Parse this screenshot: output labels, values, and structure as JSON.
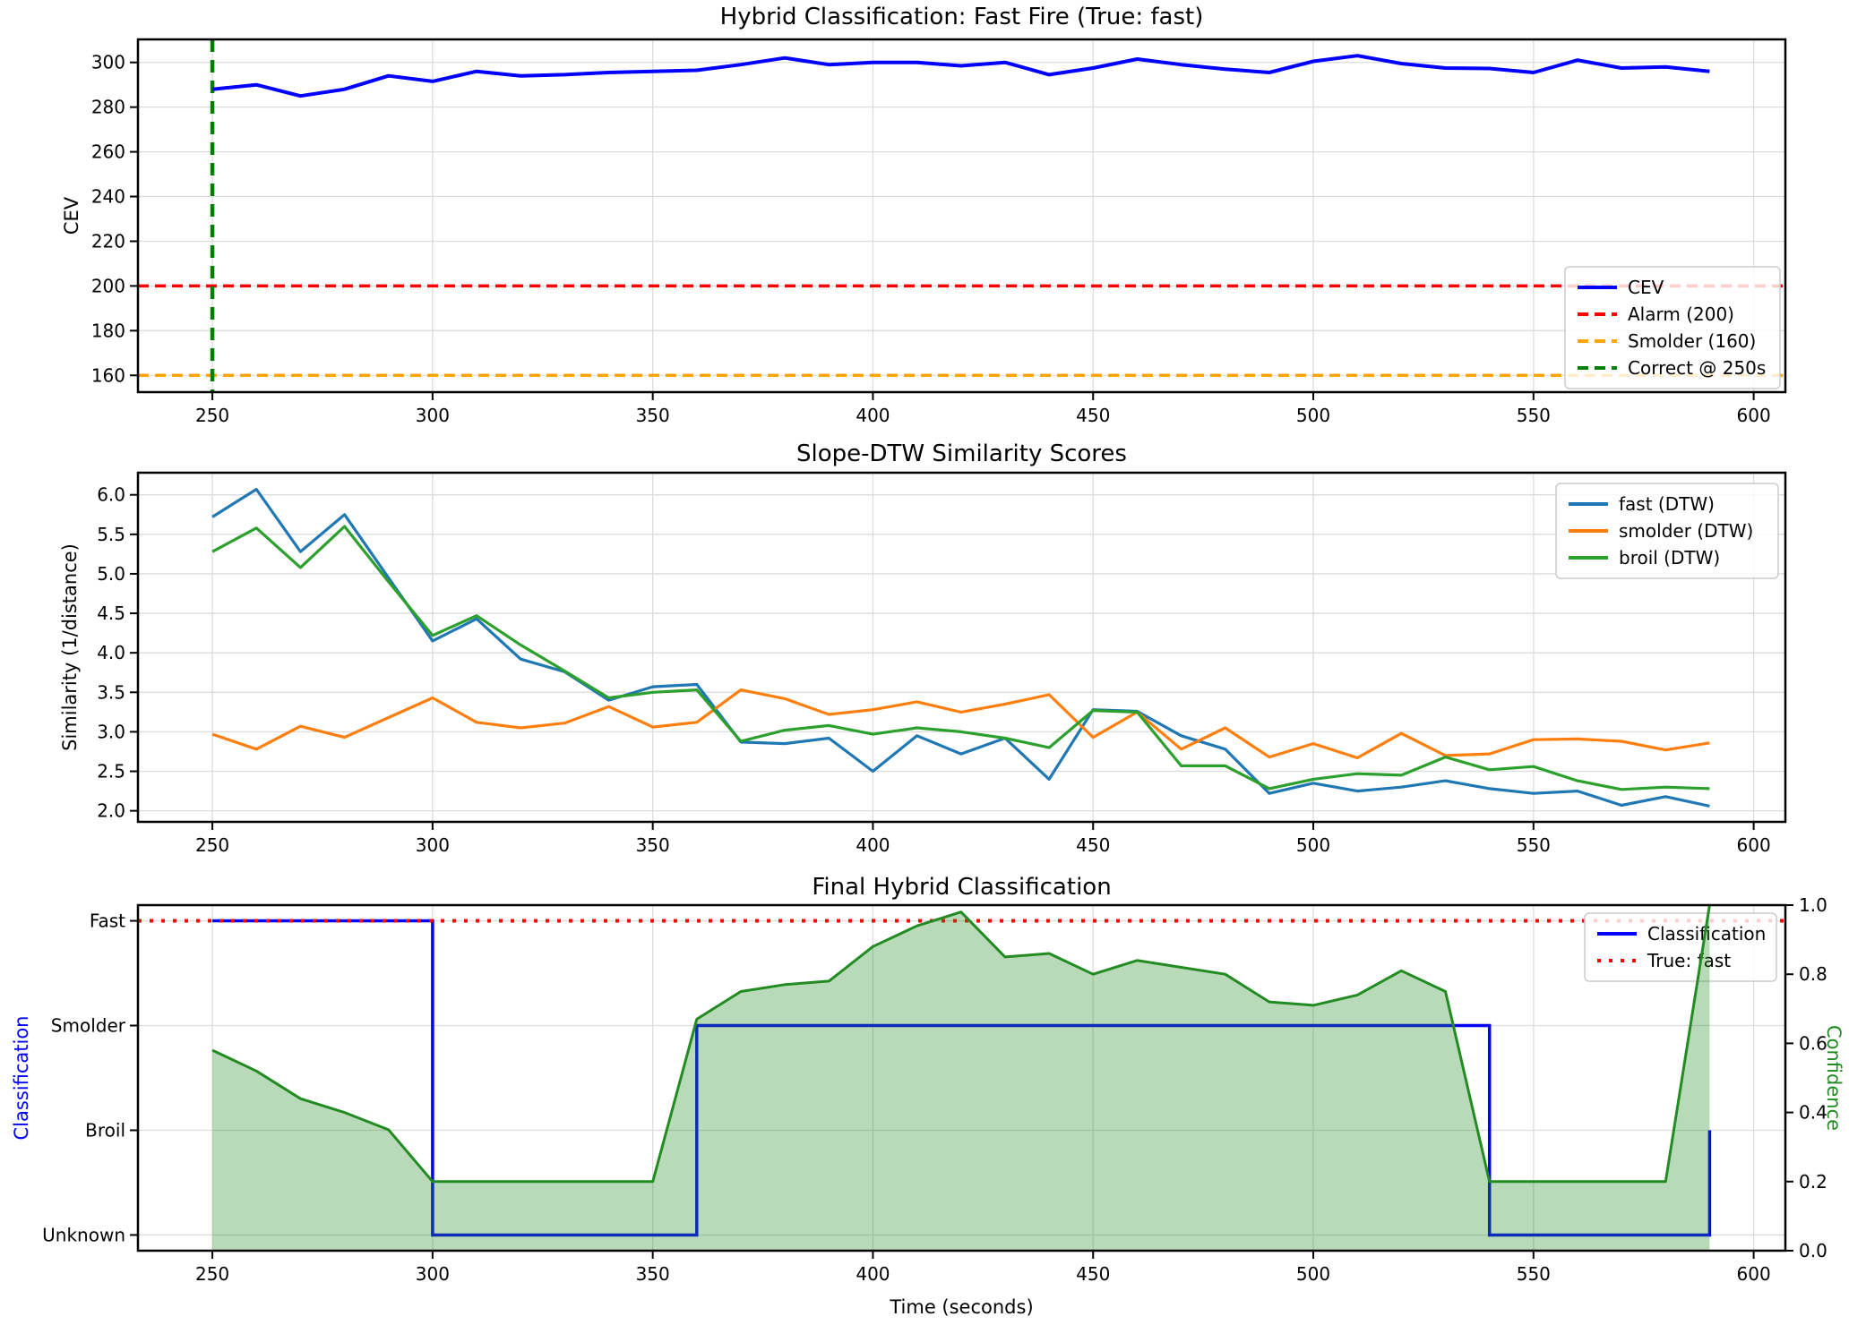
{
  "x_axis": {
    "label": "Time (seconds)",
    "ticks": [
      "250",
      "300",
      "350",
      "400",
      "450",
      "500",
      "550",
      "600"
    ],
    "tick_values": [
      250,
      300,
      350,
      400,
      450,
      500,
      550,
      600
    ],
    "xlim": [
      233.1,
      607.2
    ]
  },
  "chart_data": [
    {
      "type": "line",
      "title": "Hybrid Classification: Fast Fire (True: fast)",
      "ylabel": "CEV",
      "ylim": [
        152.5,
        310.3
      ],
      "yticks": [
        "160",
        "180",
        "200",
        "220",
        "240",
        "260",
        "280",
        "300"
      ],
      "ytick_values": [
        160,
        180,
        200,
        220,
        240,
        260,
        280,
        300
      ],
      "x": [
        250,
        260,
        270,
        280,
        290,
        300,
        310,
        320,
        330,
        340,
        350,
        360,
        370,
        380,
        390,
        400,
        410,
        420,
        430,
        440,
        450,
        460,
        470,
        480,
        490,
        500,
        510,
        520,
        530,
        540,
        550,
        560,
        570,
        580,
        590
      ],
      "series": [
        {
          "name": "CEV",
          "color": "#0000ff",
          "style": "solid",
          "values": [
            288,
            290,
            285,
            288,
            294,
            291.5,
            296,
            294,
            294.5,
            295.5,
            296,
            296.5,
            299,
            302,
            299,
            300,
            300,
            298.5,
            300,
            294.5,
            297.5,
            301.5,
            299,
            297,
            295.5,
            300.5,
            303,
            299.5,
            297.5,
            297.3,
            295.5,
            301,
            297.5,
            298,
            296
          ]
        }
      ],
      "hlines": [
        {
          "label": "Alarm (200)",
          "y": 200,
          "color": "#ff0000",
          "style": "dashed"
        },
        {
          "label": "Smolder (160)",
          "y": 160,
          "color": "#ffa500",
          "style": "dashed"
        }
      ],
      "vlines": [
        {
          "label": "Correct @ 250s",
          "x": 250,
          "color": "#008000",
          "style": "dashed"
        }
      ],
      "legend": {
        "location": "lower right",
        "items": [
          {
            "label": "CEV",
            "color": "#0000ff",
            "style": "solid"
          },
          {
            "label": "Alarm (200)",
            "color": "#ff0000",
            "style": "dashed"
          },
          {
            "label": "Smolder (160)",
            "color": "#ffa500",
            "style": "dashed"
          },
          {
            "label": "Correct @ 250s",
            "color": "#008000",
            "style": "dashed"
          }
        ]
      }
    },
    {
      "type": "line",
      "title": "Slope-DTW Similarity Scores",
      "ylabel": "Similarity (1/distance)",
      "ylim": [
        1.86,
        6.28
      ],
      "yticks": [
        "2.0",
        "2.5",
        "3.0",
        "3.5",
        "4.0",
        "4.5",
        "5.0",
        "5.5",
        "6.0"
      ],
      "ytick_values": [
        2.0,
        2.5,
        3.0,
        3.5,
        4.0,
        4.5,
        5.0,
        5.5,
        6.0
      ],
      "x": [
        250,
        260,
        270,
        280,
        290,
        300,
        310,
        320,
        330,
        340,
        350,
        360,
        370,
        380,
        390,
        400,
        410,
        420,
        430,
        440,
        450,
        460,
        470,
        480,
        490,
        500,
        510,
        520,
        530,
        540,
        550,
        560,
        570,
        580,
        590
      ],
      "series": [
        {
          "name": "fast (DTW)",
          "color": "#1f77b4",
          "style": "solid",
          "values": [
            5.72,
            6.07,
            5.28,
            5.75,
            4.95,
            4.15,
            4.43,
            3.92,
            3.76,
            3.4,
            3.57,
            3.6,
            2.87,
            2.85,
            2.92,
            2.5,
            2.95,
            2.72,
            2.92,
            2.4,
            3.28,
            3.26,
            2.95,
            2.78,
            2.22,
            2.35,
            2.25,
            2.3,
            2.38,
            2.28,
            2.22,
            2.25,
            2.07,
            2.18,
            2.06
          ]
        },
        {
          "name": "smolder (DTW)",
          "color": "#ff7f0e",
          "style": "solid",
          "values": [
            2.97,
            2.78,
            3.07,
            2.93,
            3.18,
            3.43,
            3.12,
            3.05,
            3.11,
            3.32,
            3.06,
            3.12,
            3.53,
            3.42,
            3.22,
            3.28,
            3.38,
            3.25,
            3.35,
            3.47,
            2.93,
            3.25,
            2.78,
            3.05,
            2.68,
            2.85,
            2.67,
            2.98,
            2.7,
            2.72,
            2.9,
            2.91,
            2.88,
            2.77,
            2.86
          ]
        },
        {
          "name": "broil (DTW)",
          "color": "#2ca02c",
          "style": "solid",
          "values": [
            5.28,
            5.58,
            5.08,
            5.6,
            4.9,
            4.22,
            4.47,
            4.1,
            3.77,
            3.43,
            3.5,
            3.53,
            2.88,
            3.02,
            3.08,
            2.97,
            3.05,
            3.0,
            2.92,
            2.8,
            3.27,
            3.25,
            2.57,
            2.57,
            2.28,
            2.4,
            2.47,
            2.45,
            2.68,
            2.52,
            2.56,
            2.38,
            2.27,
            2.3,
            2.28
          ]
        }
      ],
      "legend": {
        "location": "upper right",
        "items": [
          {
            "label": "fast (DTW)",
            "color": "#1f77b4",
            "style": "solid"
          },
          {
            "label": "smolder (DTW)",
            "color": "#ff7f0e",
            "style": "solid"
          },
          {
            "label": "broil (DTW)",
            "color": "#2ca02c",
            "style": "solid"
          }
        ]
      }
    },
    {
      "type": "step_area",
      "title": "Final Hybrid Classification",
      "ylabel_left": "Classification",
      "ylabel_right": "Confidence",
      "xlabel": "Time (seconds)",
      "left_axis_color": "#0000ff",
      "right_axis_color": "#228b22",
      "categories": [
        "Unknown",
        "Broil",
        "Smolder",
        "Fast"
      ],
      "left_ylim": [
        -0.15,
        3.15
      ],
      "right_ylim": [
        0,
        1
      ],
      "right_yticks": [
        "0.0",
        "0.2",
        "0.4",
        "0.6",
        "0.8",
        "1.0"
      ],
      "right_ytick_values": [
        0,
        0.2,
        0.4,
        0.6,
        0.8,
        1.0
      ],
      "classification_steps": [
        {
          "start": 250,
          "end": 300,
          "label": "Fast"
        },
        {
          "start": 300,
          "end": 360,
          "label": "Unknown"
        },
        {
          "start": 360,
          "end": 540,
          "label": "Smolder"
        },
        {
          "start": 540,
          "end": 590,
          "label": "Unknown"
        },
        {
          "start": 590,
          "end": 590,
          "label": "Broil"
        }
      ],
      "classification_color": "#0000ff",
      "x": [
        250,
        260,
        270,
        280,
        290,
        300,
        310,
        320,
        330,
        340,
        350,
        360,
        370,
        380,
        390,
        400,
        410,
        420,
        430,
        440,
        450,
        460,
        470,
        480,
        490,
        500,
        510,
        520,
        530,
        540,
        550,
        560,
        570,
        580,
        590
      ],
      "confidence": [
        0.58,
        0.52,
        0.44,
        0.4,
        0.35,
        0.2,
        0.2,
        0.2,
        0.2,
        0.2,
        0.2,
        0.67,
        0.75,
        0.77,
        0.78,
        0.88,
        0.94,
        0.98,
        0.85,
        0.86,
        0.8,
        0.84,
        0.82,
        0.8,
        0.72,
        0.71,
        0.74,
        0.81,
        0.75,
        0.2,
        0.2,
        0.2,
        0.2,
        0.2,
        1.0
      ],
      "confidence_color": "#228b22",
      "confidence_fill": "rgba(34,139,34,0.32)",
      "true_line": {
        "label": "True: fast",
        "category": "Fast",
        "color": "#ff0000",
        "style": "dotted"
      },
      "legend": {
        "location": "upper right",
        "items": [
          {
            "label": "Classification",
            "color": "#0000ff",
            "style": "solid"
          },
          {
            "label": "True: fast",
            "color": "#ff0000",
            "style": "dotted"
          }
        ]
      }
    }
  ]
}
